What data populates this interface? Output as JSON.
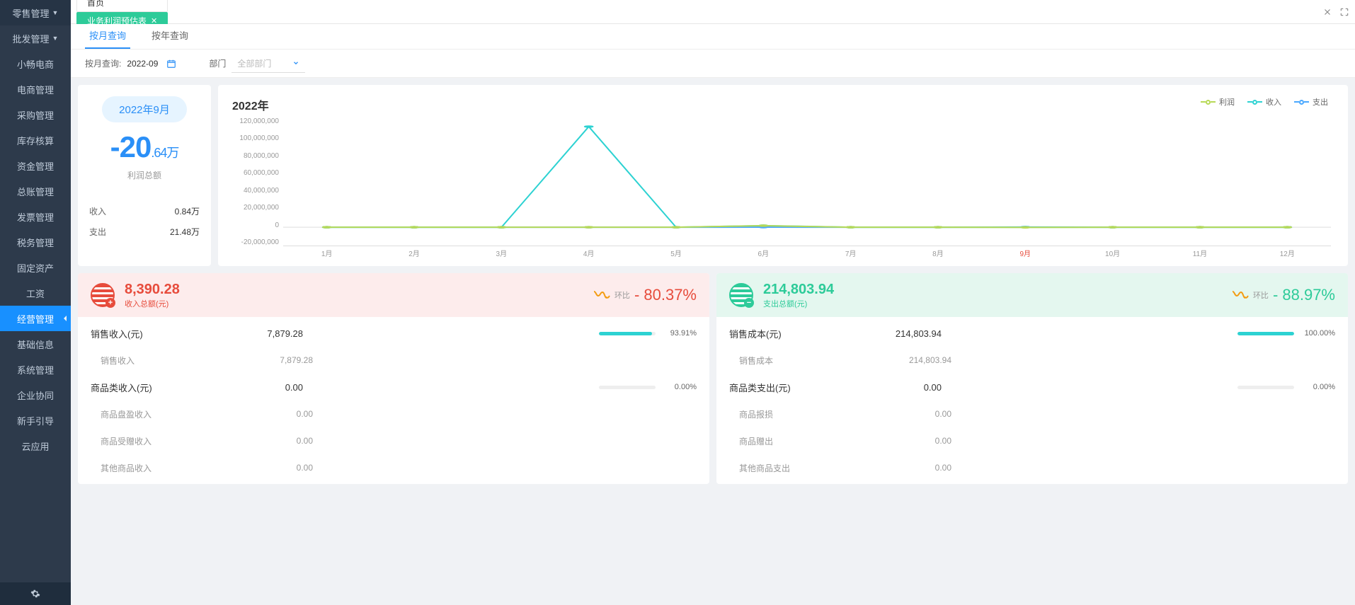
{
  "sidebar": {
    "items": [
      {
        "label": "零售管理",
        "has_arrow": true
      },
      {
        "label": "批发管理",
        "has_arrow": true
      },
      {
        "label": "小畅电商"
      },
      {
        "label": "电商管理"
      },
      {
        "label": "采购管理"
      },
      {
        "label": "库存核算"
      },
      {
        "label": "资金管理"
      },
      {
        "label": "总账管理"
      },
      {
        "label": "发票管理"
      },
      {
        "label": "税务管理"
      },
      {
        "label": "固定资产"
      },
      {
        "label": "工资"
      },
      {
        "label": "经营管理",
        "active": true
      },
      {
        "label": "基础信息"
      },
      {
        "label": "系统管理"
      },
      {
        "label": "企业协同"
      },
      {
        "label": "新手引导"
      },
      {
        "label": "云应用"
      }
    ]
  },
  "tabs": [
    {
      "label": "首页"
    },
    {
      "label": "业务利润预估表",
      "active": true,
      "closable": true
    }
  ],
  "subtabs": [
    {
      "label": "按月查询",
      "active": true
    },
    {
      "label": "按年查询"
    }
  ],
  "filter": {
    "month_label": "按月查询:",
    "month_value": "2022-09",
    "dept_label": "部门",
    "dept_placeholder": "全部部门"
  },
  "summary": {
    "month_title": "2022年9月",
    "profit_main": "-20",
    "profit_decimal": ".64",
    "profit_unit": "万",
    "profit_label": "利润总额",
    "rows": [
      {
        "label": "收入",
        "value": "0.84万"
      },
      {
        "label": "支出",
        "value": "21.48万"
      }
    ]
  },
  "chart": {
    "title": "2022年",
    "legend": [
      {
        "label": "利润",
        "color": "#b7d957"
      },
      {
        "label": "收入",
        "color": "#2dd2d2"
      },
      {
        "label": "支出",
        "color": "#4aa8ff"
      }
    ],
    "y_ticks": [
      "120,000,000",
      "100,000,000",
      "80,000,000",
      "60,000,000",
      "40,000,000",
      "20,000,000",
      "0",
      "-20,000,000"
    ],
    "x_ticks": [
      "1月",
      "2月",
      "3月",
      "4月",
      "5月",
      "6月",
      "7月",
      "8月",
      "9月",
      "10月",
      "11月",
      "12月"
    ],
    "x_highlight_index": 8,
    "series": {
      "profit": [
        0,
        0,
        0,
        0,
        0,
        1700000,
        0,
        0,
        -200000,
        0,
        0,
        0
      ],
      "income": [
        0,
        0,
        0,
        110000000,
        0,
        1800000,
        0,
        0,
        8000,
        0,
        0,
        0
      ],
      "expense": [
        0,
        0,
        0,
        0,
        0,
        100000,
        0,
        0,
        210000,
        0,
        0,
        0
      ]
    },
    "y_min": -20000000,
    "y_max": 120000000
  },
  "panels": [
    {
      "color": "red",
      "amount": "8,390.28",
      "amount_label": "收入总额(元)",
      "hb_label": "环比",
      "hb_value": "- 80.37%",
      "icon_badge": "+",
      "rows": [
        {
          "label": "销售收入(元)",
          "value": "7,879.28",
          "pct": 93.91,
          "pct_text": "93.91%"
        },
        {
          "label": "销售收入",
          "value": "7,879.28",
          "sub": true
        },
        {
          "label": "商品类收入(元)",
          "value": "0.00",
          "pct": 0,
          "pct_text": "0.00%"
        },
        {
          "label": "商品盘盈收入",
          "value": "0.00",
          "sub": true
        },
        {
          "label": "商品受赠收入",
          "value": "0.00",
          "sub": true
        },
        {
          "label": "其他商品收入",
          "value": "0.00",
          "sub": true
        }
      ]
    },
    {
      "color": "green",
      "amount": "214,803.94",
      "amount_label": "支出总额(元)",
      "hb_label": "环比",
      "hb_value": "- 88.97%",
      "icon_badge": "−",
      "rows": [
        {
          "label": "销售成本(元)",
          "value": "214,803.94",
          "pct": 100,
          "pct_text": "100.00%"
        },
        {
          "label": "销售成本",
          "value": "214,803.94",
          "sub": true
        },
        {
          "label": "商品类支出(元)",
          "value": "0.00",
          "pct": 0,
          "pct_text": "0.00%"
        },
        {
          "label": "商品报损",
          "value": "0.00",
          "sub": true
        },
        {
          "label": "商品赠出",
          "value": "0.00",
          "sub": true
        },
        {
          "label": "其他商品支出",
          "value": "0.00",
          "sub": true
        }
      ]
    }
  ]
}
